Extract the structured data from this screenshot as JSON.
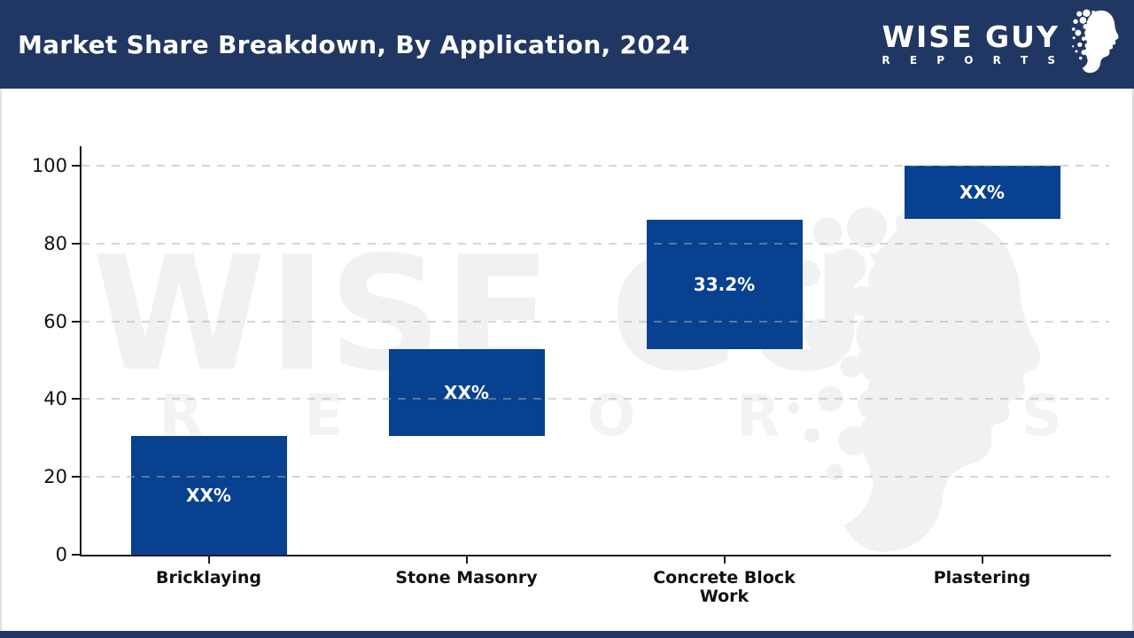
{
  "header": {
    "title": "Market Share Breakdown, By Application, 2024",
    "logo": {
      "wordmark": "WISE GUY",
      "subtitle": "R E P O R T S"
    }
  },
  "watermark": {
    "wordmark": "WISE GUY",
    "subtitle": "R E P O R T S"
  },
  "chart_data": {
    "type": "bar",
    "variant": "stacked-waterfall-percent",
    "title": "Market Share Breakdown, By Application, 2024",
    "categories": [
      "Bricklaying",
      "Stone Masonry",
      "Concrete Block Work",
      "Plastering"
    ],
    "segments": [
      {
        "category": "Bricklaying",
        "start": 0,
        "end": 30.5,
        "label": "XX%"
      },
      {
        "category": "Stone Masonry",
        "start": 30.5,
        "end": 52.9,
        "label": "XX%"
      },
      {
        "category": "Concrete Block Work",
        "start": 52.9,
        "end": 86.1,
        "label": "33.2%"
      },
      {
        "category": "Plastering",
        "start": 86.3,
        "end": 100,
        "label": "XX%"
      }
    ],
    "yticks": [
      0,
      20,
      40,
      60,
      80,
      100
    ],
    "ylim": [
      0,
      100
    ],
    "xlabel": "",
    "ylabel": "",
    "grid": {
      "axis": "y",
      "style": "dashed"
    },
    "legend": "none",
    "colors": {
      "bar": "#07418f",
      "bar_label": "#ffffff",
      "axis": "#1a1a1a",
      "gridline": "#acacac",
      "header_bg": "#213763",
      "watermark": "#f1f1f3"
    }
  }
}
